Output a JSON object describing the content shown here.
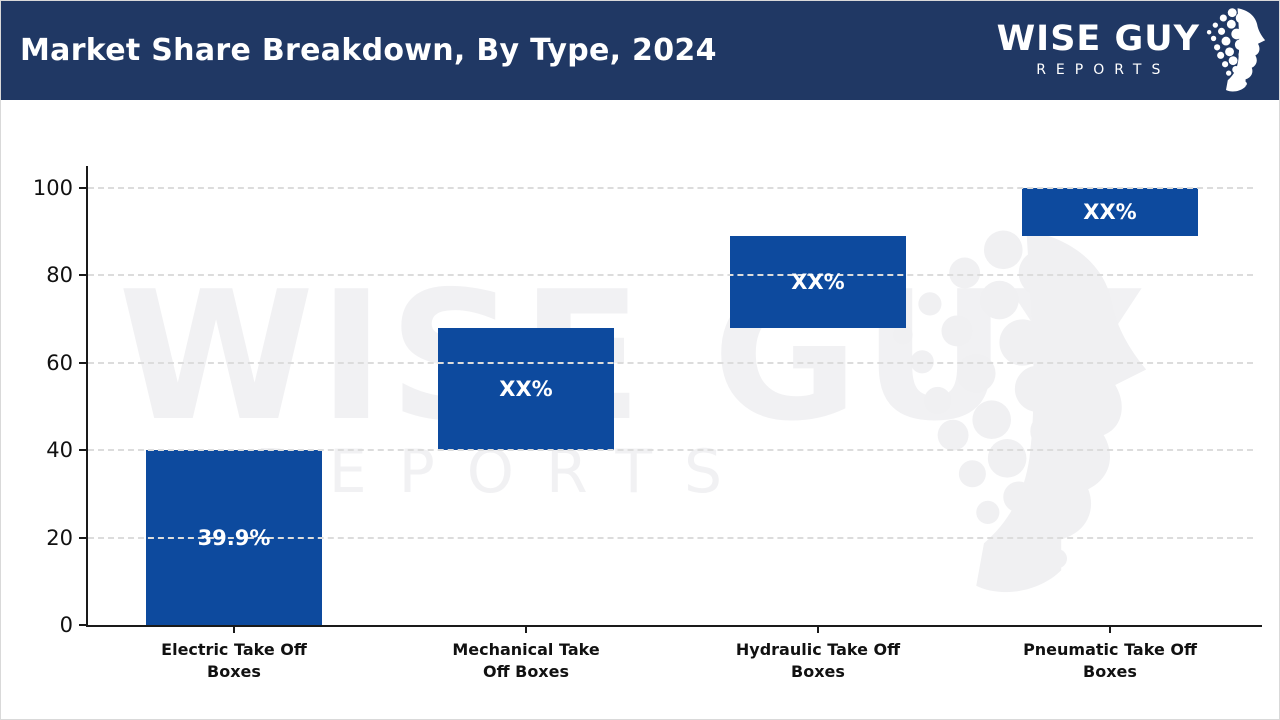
{
  "header": {
    "title": "Market Share Breakdown, By Type, 2024",
    "bg_color": "#203864",
    "logo": {
      "line1": "WISE GUY",
      "line2": "REPORTS",
      "face_icon": "dotted-head-profile"
    }
  },
  "watermark": {
    "line1": "WISE GUY",
    "line2": "REPORTS",
    "color": "#f1f1f3",
    "face_icon": "dotted-head-profile"
  },
  "chart_data": {
    "type": "bar",
    "variant": "waterfall",
    "title": "Market Share Breakdown, By Type, 2024",
    "xlabel": "",
    "ylabel": "",
    "ylim": [
      0,
      105
    ],
    "yticks": [
      0,
      20,
      40,
      60,
      80,
      100
    ],
    "grid": "horizontal-dashed",
    "legend": "none",
    "bar_color": "#0d4a9e",
    "bar_label_color": "#ffffff",
    "axis_color": "#1a1a1a",
    "grid_color": "#dcdcdc",
    "categories": [
      "Electric Take Off Boxes",
      "Mechanical Take Off Boxes",
      "Hydraulic Take Off Boxes",
      "Pneumatic Take Off Boxes"
    ],
    "category_label_lines": [
      [
        "Electric Take Off",
        "Boxes"
      ],
      [
        "Mechanical Take",
        "Off Boxes"
      ],
      [
        "Hydraulic Take Off",
        "Boxes"
      ],
      [
        "Pneumatic Take Off",
        "Boxes"
      ]
    ],
    "segments": [
      {
        "category": "Electric Take Off Boxes",
        "start": 0,
        "end": 39.9,
        "label": "39.9%"
      },
      {
        "category": "Mechanical Take Off Boxes",
        "start": 39.9,
        "end": 68,
        "label": "XX%"
      },
      {
        "category": "Hydraulic Take Off Boxes",
        "start": 68,
        "end": 89,
        "label": "XX%"
      },
      {
        "category": "Pneumatic Take Off Boxes",
        "start": 89,
        "end": 100,
        "label": "XX%"
      }
    ]
  }
}
